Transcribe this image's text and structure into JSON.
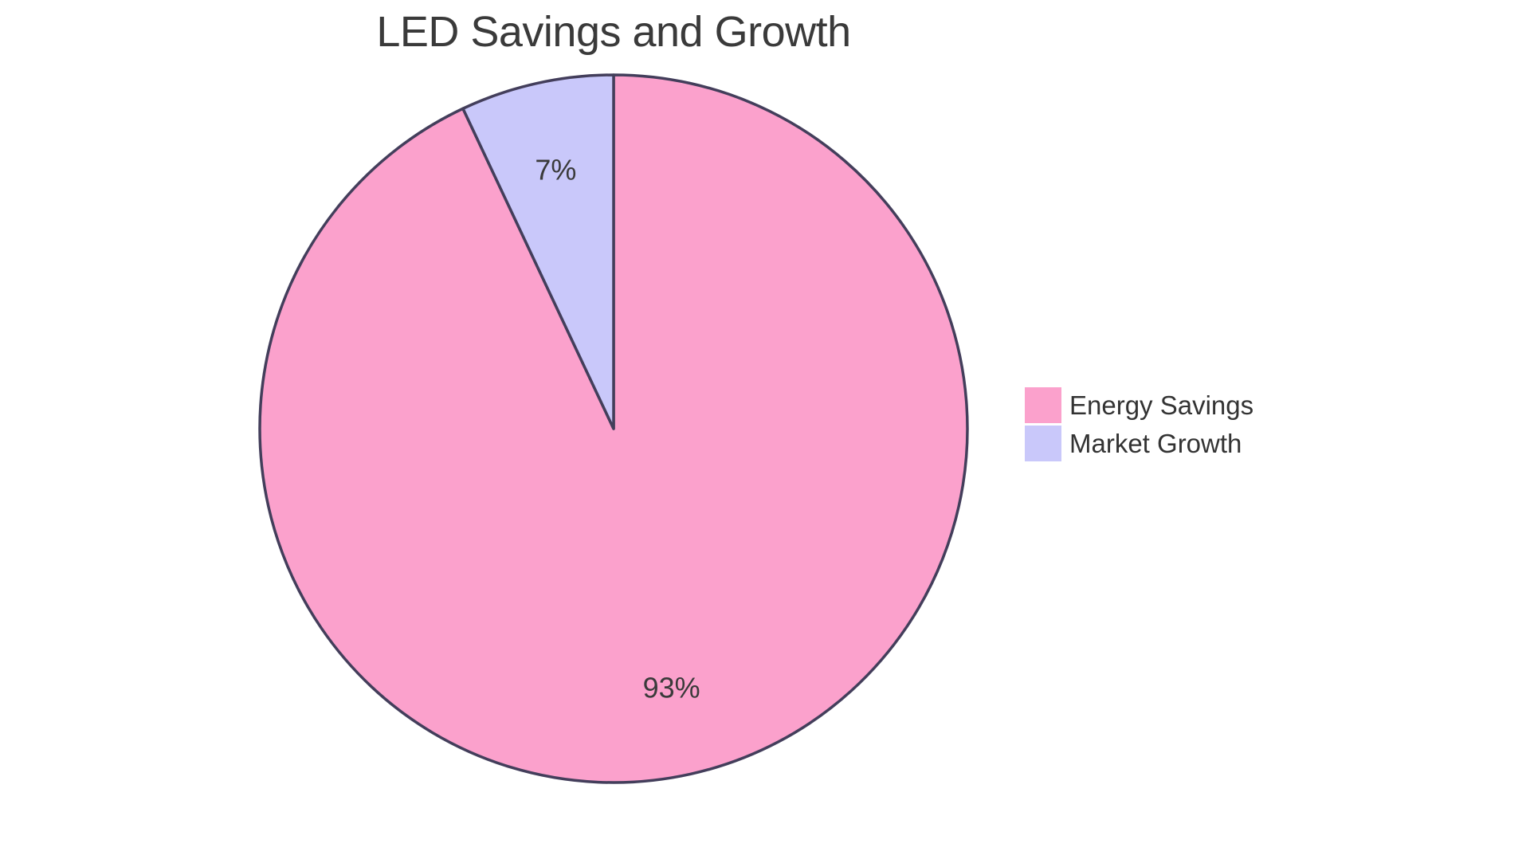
{
  "chart_data": {
    "type": "pie",
    "title": "LED Savings and Growth",
    "slices": [
      {
        "label": "Energy Savings",
        "value": 93,
        "value_label": "93%",
        "color": "#FBA1CC"
      },
      {
        "label": "Market Growth",
        "value": 7,
        "value_label": "7%",
        "color": "#C9C8FA"
      }
    ],
    "start_angle_deg": -90,
    "direction": "clockwise",
    "legend_position": "right",
    "stroke_color": "#433E5B",
    "stroke_width": 3.5,
    "label_color": "#3A3A3A",
    "title_color": "#3A3A3A",
    "background_color": "#FFFFFF"
  }
}
